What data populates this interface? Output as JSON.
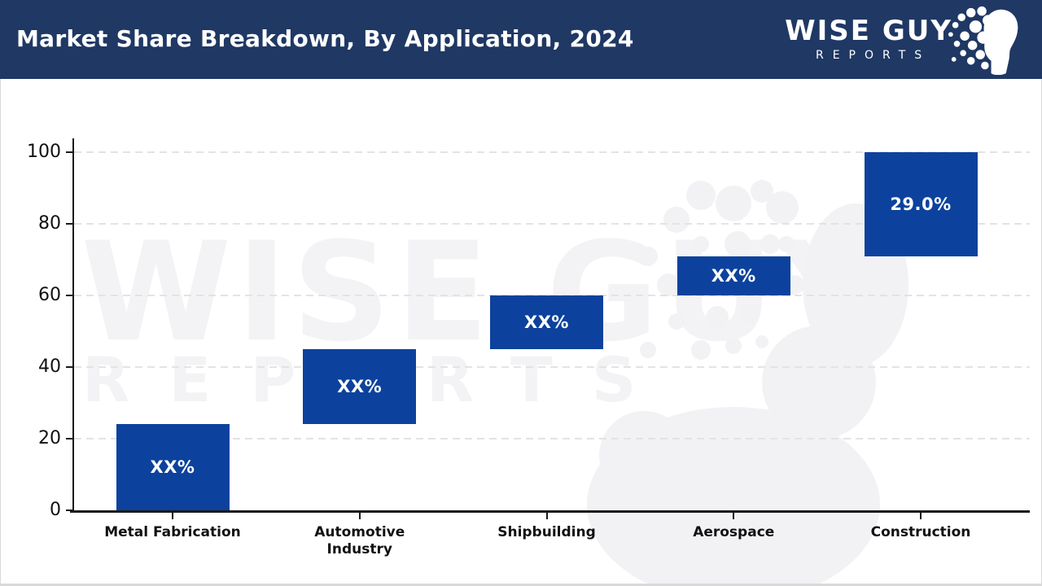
{
  "header": {
    "title": "Market Share Breakdown, By Application, 2024",
    "logo": {
      "line1": "WISE GUY",
      "line2": "REPORTS"
    }
  },
  "watermark": {
    "line1": "WISE GUY",
    "line2": "REPORTS"
  },
  "chart_data": {
    "type": "bar",
    "subtype": "floating-waterfall",
    "title": "Market Share Breakdown, By Application, 2024",
    "xlabel": "",
    "ylabel": "",
    "ylim": [
      0,
      104
    ],
    "yticks": [
      0,
      20,
      40,
      60,
      80,
      100
    ],
    "grid": "horizontal-dashed",
    "legend": "none",
    "categories": [
      "Metal Fabrication",
      "Automotive\nIndustry",
      "Shipbuilding",
      "Aerospace",
      "Construction"
    ],
    "segments": [
      {
        "category": "Metal Fabrication",
        "start": 0,
        "end": 24,
        "label": "XX%"
      },
      {
        "category": "Automotive Industry",
        "start": 24,
        "end": 45,
        "label": "XX%"
      },
      {
        "category": "Shipbuilding",
        "start": 45,
        "end": 60,
        "label": "XX%"
      },
      {
        "category": "Aerospace",
        "start": 60,
        "end": 71,
        "label": "XX%"
      },
      {
        "category": "Construction",
        "start": 71,
        "end": 100,
        "label": "29.0%"
      }
    ]
  },
  "colors": {
    "header_bg": "#1f3864",
    "bar": "#0c429d",
    "bar_label": "#ffffff",
    "axis": "#1a1a1a",
    "tick_label": "#111111",
    "grid": "#e3e3e3",
    "watermark": "#f3f3f5"
  }
}
